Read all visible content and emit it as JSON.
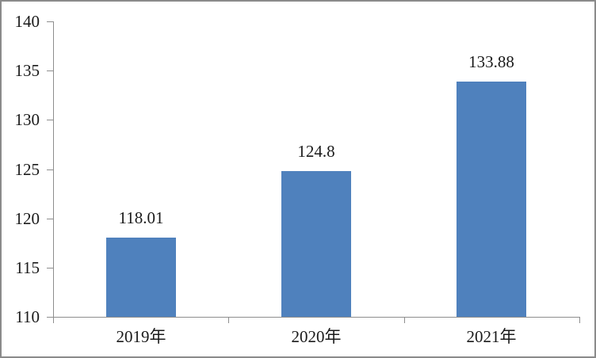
{
  "chart_data": {
    "type": "bar",
    "categories": [
      "2019年",
      "2020年",
      "2021年"
    ],
    "values": [
      118.01,
      124.8,
      133.88
    ],
    "value_labels": [
      "118.01",
      "124.8",
      "133.88"
    ],
    "title": "",
    "xlabel": "",
    "ylabel": "",
    "ylim": [
      110,
      140
    ],
    "y_tick_step": 5,
    "y_tick_labels": [
      "110",
      "115",
      "120",
      "125",
      "130",
      "135",
      "140"
    ],
    "grid": false,
    "legend": false,
    "data_labels_shown": true
  },
  "colors": {
    "bar_fill": "#4f81bd",
    "axis_line": "#8e8e8e",
    "text": "#1a1a1a",
    "frame_border": "#8a8a8a",
    "background": "#ffffff"
  }
}
